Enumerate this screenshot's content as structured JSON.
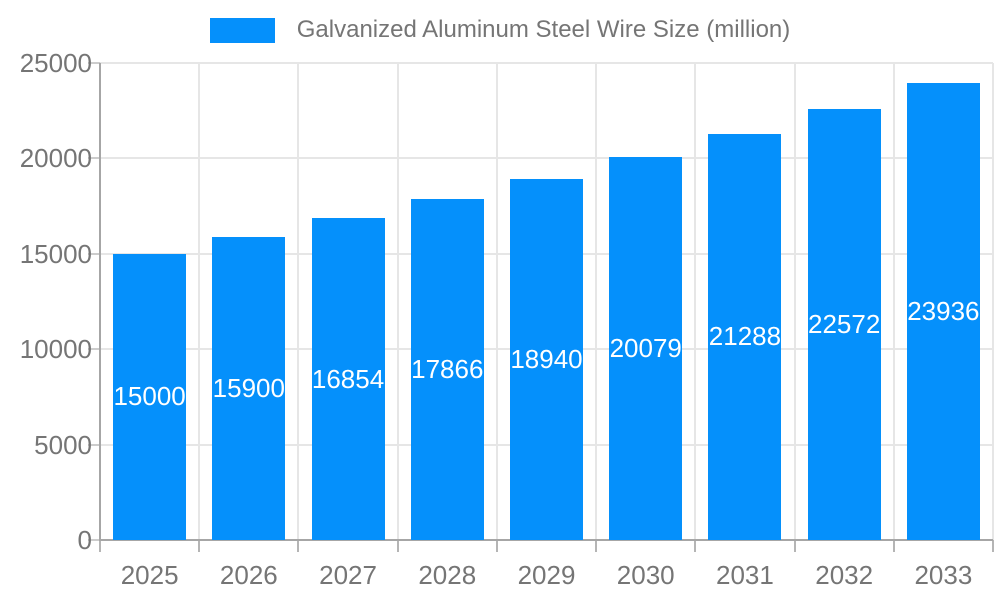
{
  "legend": {
    "label": "Galvanized Aluminum Steel Wire Size (million)"
  },
  "chart_data": {
    "type": "bar",
    "title": "Galvanized Aluminum Steel Wire Size (million)",
    "categories": [
      "2025",
      "2026",
      "2027",
      "2028",
      "2029",
      "2030",
      "2031",
      "2032",
      "2033"
    ],
    "values": [
      15000,
      15900,
      16854,
      17866,
      18940,
      20079,
      21288,
      22572,
      23936
    ],
    "value_labels_visible": true,
    "value_label_position": "inside-middle",
    "xlabel": "",
    "ylabel": "",
    "ylim": [
      0,
      25000
    ],
    "y_ticks": [
      0,
      5000,
      10000,
      15000,
      20000,
      25000
    ],
    "grid": true,
    "legend_position": "top-center",
    "colors": {
      "bar": "#0590fb",
      "grid": "#e6e6e6",
      "axis": "#a6a6a6",
      "tick_y": "#cccccc",
      "tick_x": "#b5b5b5",
      "axis_text": "#757575",
      "value_text": "#ffffff",
      "background": "#ffffff"
    }
  }
}
